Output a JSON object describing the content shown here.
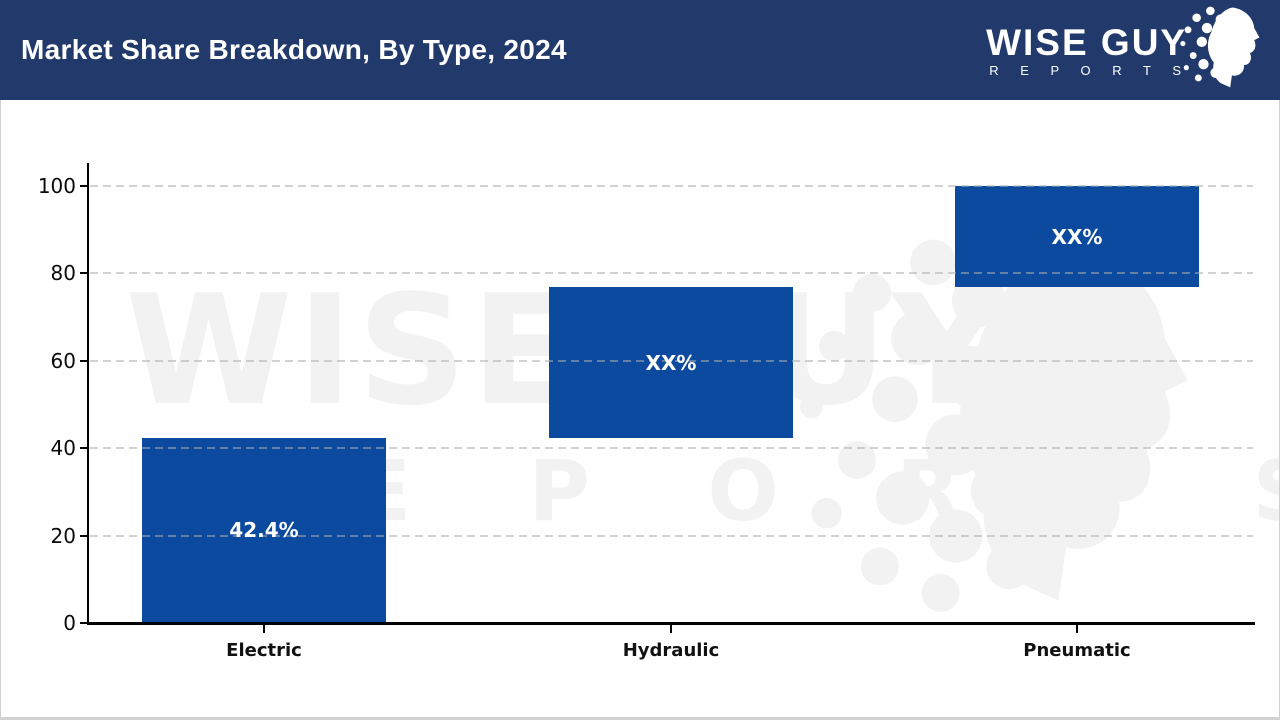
{
  "header": {
    "title": "Market Share Breakdown, By Type, 2024",
    "logo": {
      "line1": "WISE GUY",
      "line2": "R E P O R T S"
    }
  },
  "watermark": {
    "line1": "WISE GUY",
    "line2": "R E P O R T S"
  },
  "chart_data": {
    "type": "bar",
    "subtype": "waterfall",
    "title": "Market Share Breakdown, By Type, 2024",
    "categories": [
      "Electric",
      "Hydraulic",
      "Pneumatic"
    ],
    "segments": [
      {
        "category": "Electric",
        "start": 0,
        "end": 42.4,
        "label": "42.4%"
      },
      {
        "category": "Hydraulic",
        "start": 42.4,
        "end": 76.8,
        "label": "XX%"
      },
      {
        "category": "Pneumatic",
        "start": 76.8,
        "end": 100,
        "label": "XX%"
      }
    ],
    "xlabel": "",
    "ylabel": "",
    "yticks": [
      0,
      20,
      40,
      60,
      80,
      100
    ],
    "ylim": [
      0,
      105
    ],
    "grid": {
      "axis": "y",
      "style": "dashed",
      "color": "#dcdcdc"
    },
    "legend": "none",
    "colors": {
      "bar": "#0b4a9e",
      "bar_label": "#ffffff",
      "header_bg": "#22396b",
      "axis": "#000000",
      "watermark": "#f2f2f2"
    }
  }
}
